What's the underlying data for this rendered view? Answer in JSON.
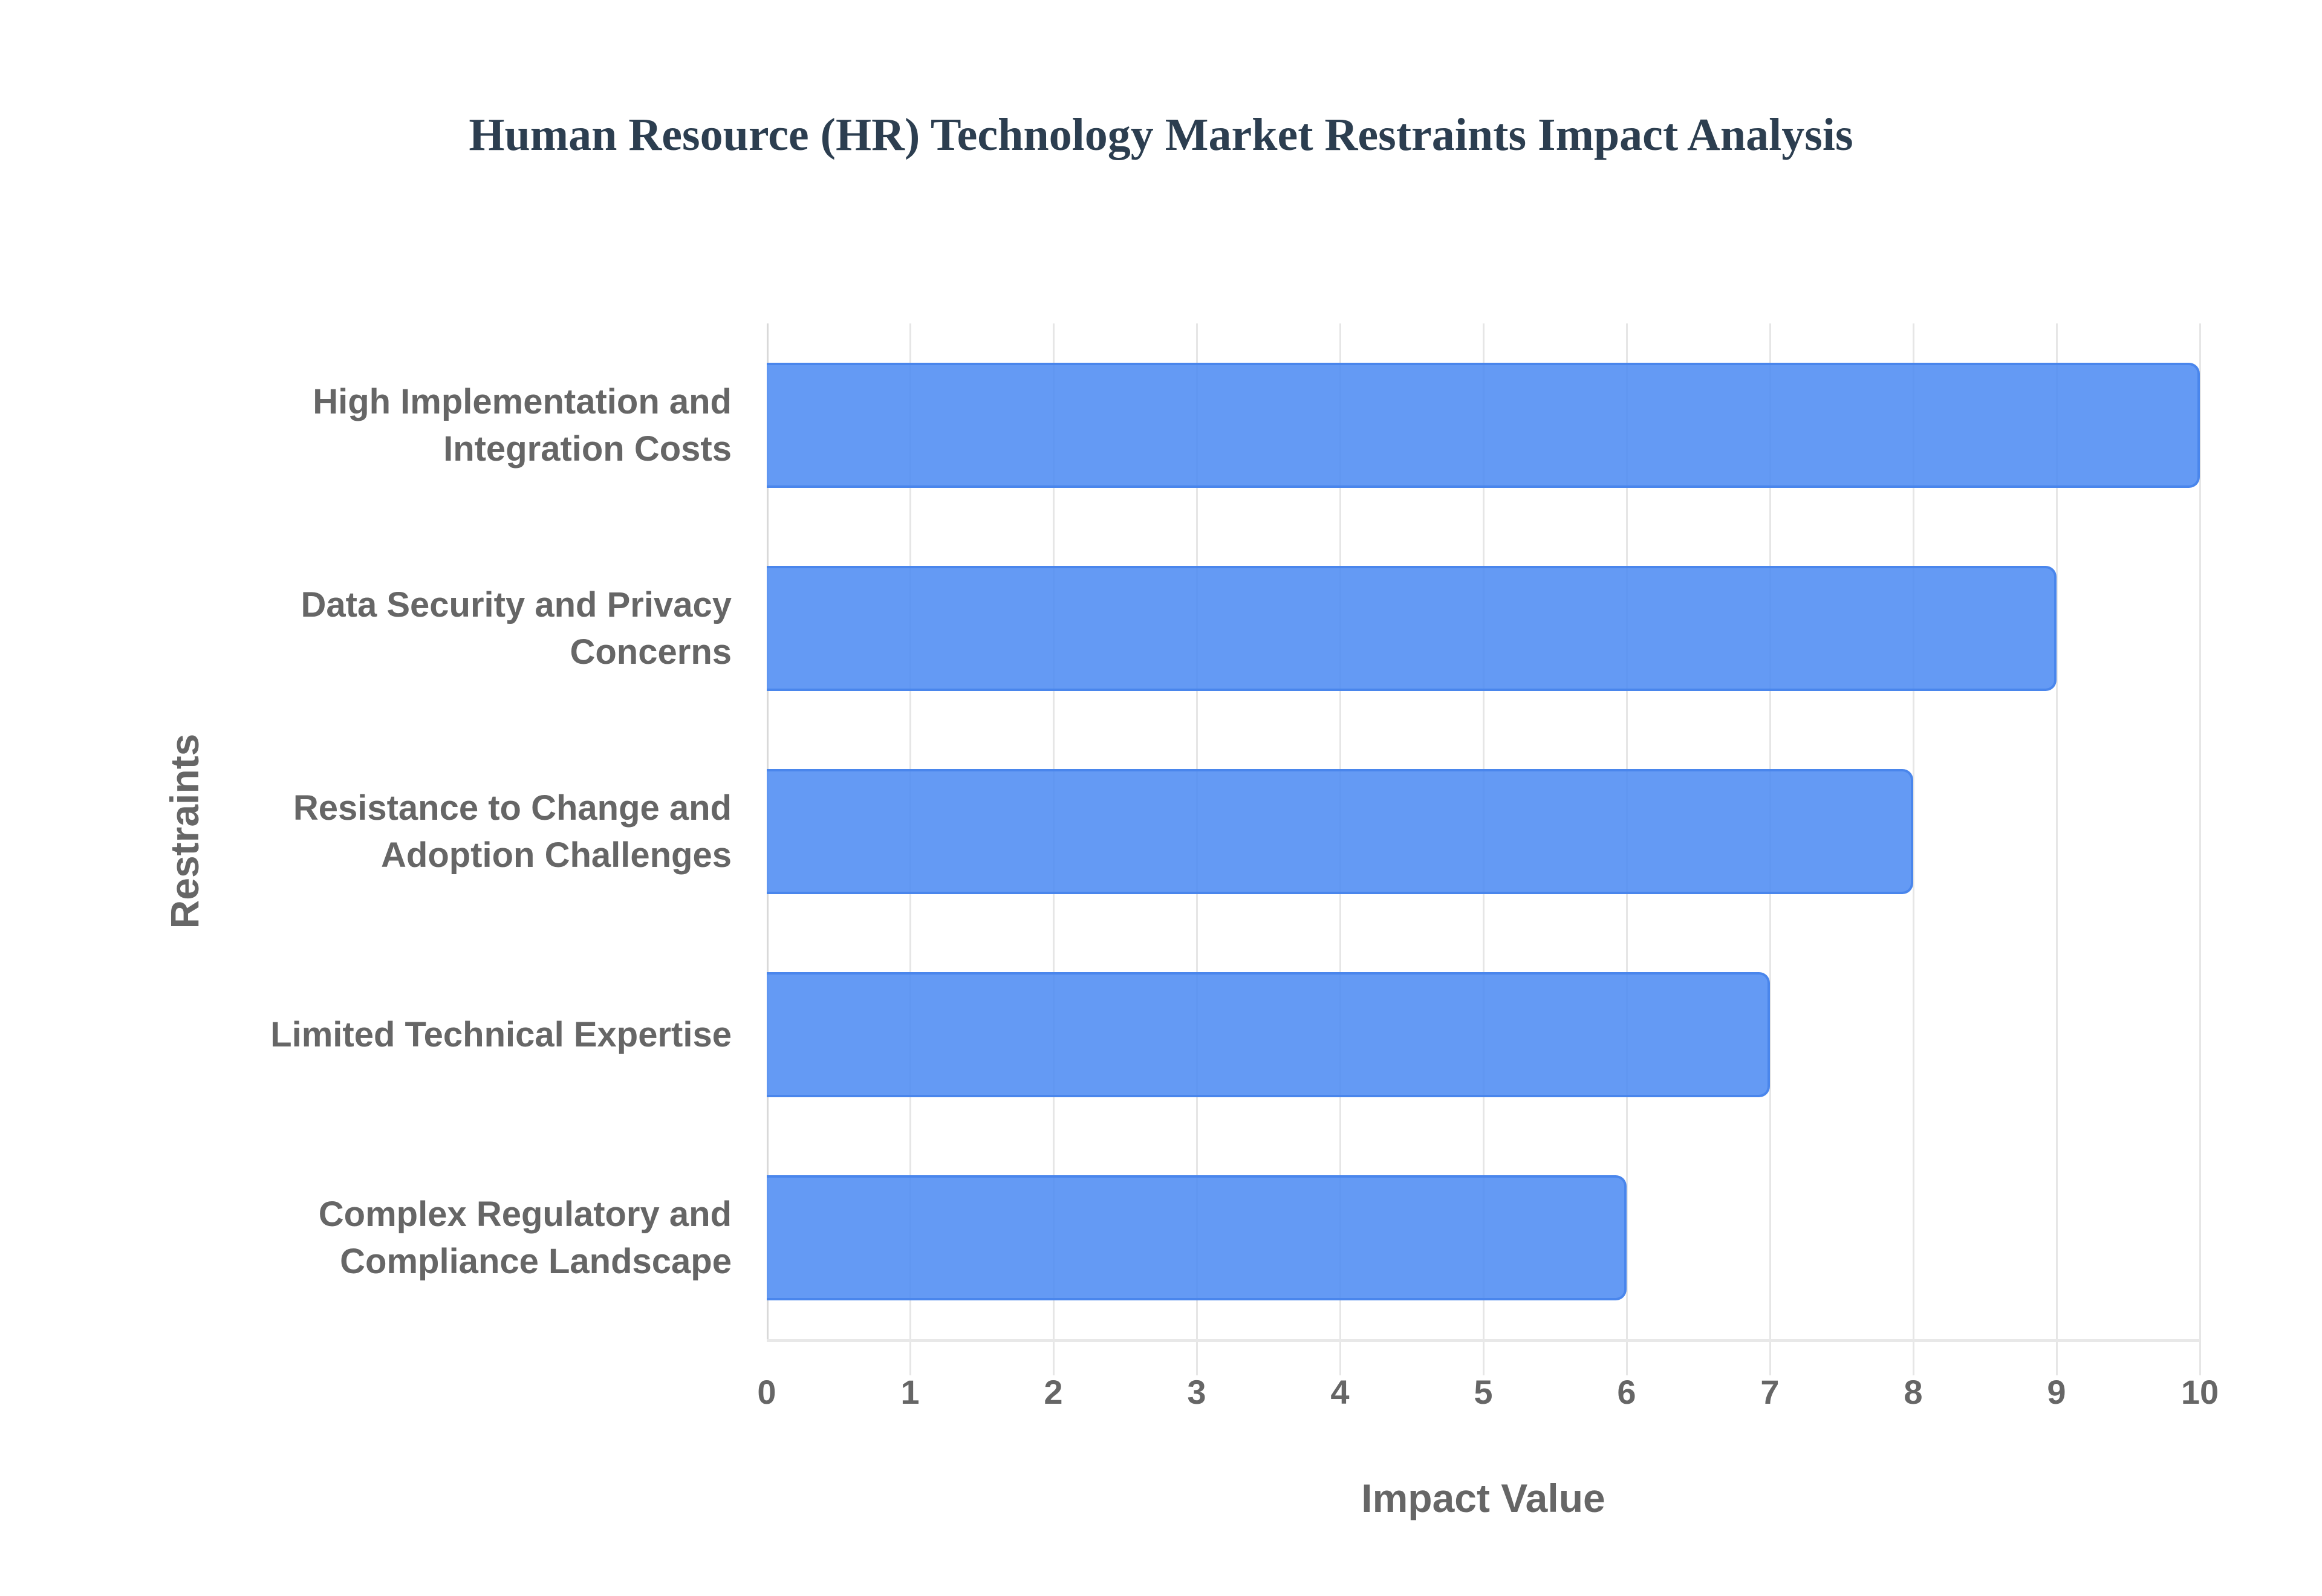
{
  "chart_data": {
    "type": "bar",
    "orientation": "horizontal",
    "title": "Human Resource (HR) Technology Market Restraints Impact Analysis",
    "xlabel": "Impact Value",
    "ylabel": "Restraints",
    "categories": [
      "High Implementation and Integration Costs",
      "Data Security and Privacy Concerns",
      "Resistance to Change and Adoption Challenges",
      "Limited Technical Expertise",
      "Complex Regulatory and Compliance Landscape"
    ],
    "category_lines": [
      [
        "High Implementation and",
        "Integration Costs"
      ],
      [
        "Data Security and Privacy",
        "Concerns"
      ],
      [
        "Resistance to Change and",
        "Adoption Challenges"
      ],
      [
        "Limited Technical Expertise"
      ],
      [
        "Complex Regulatory and",
        "Compliance Landscape"
      ]
    ],
    "values": [
      10,
      9,
      8,
      7,
      6
    ],
    "xlim": [
      0,
      10
    ],
    "xticks": [
      "0",
      "1",
      "2",
      "3",
      "4",
      "5",
      "6",
      "7",
      "8",
      "9",
      "10"
    ],
    "grid": true,
    "legend": "none",
    "colors": {
      "bar_fill": "#5e97f4",
      "bar_border": "#4a86ec",
      "title": "#2c3e50",
      "labels": "#666666"
    }
  }
}
